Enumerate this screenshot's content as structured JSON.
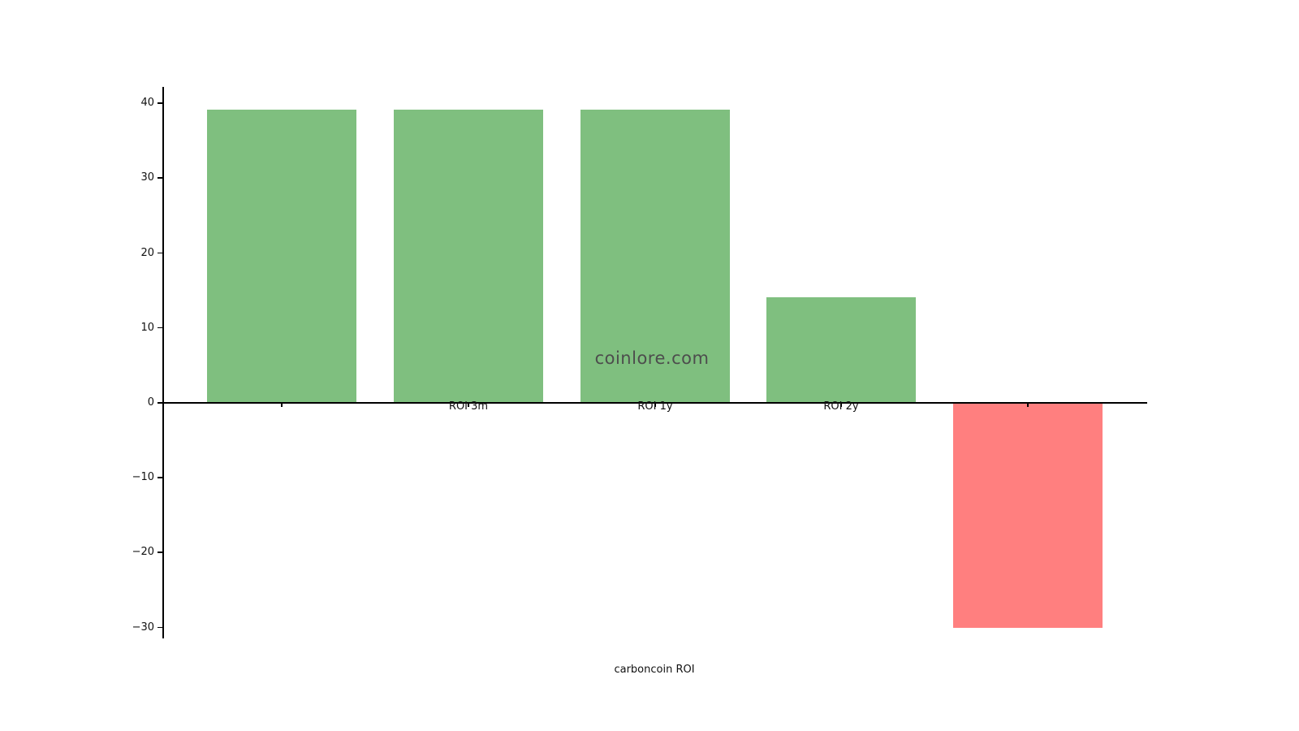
{
  "watermark": {
    "text": "coinlore.com",
    "color": "#4d4d4d"
  },
  "chart_data": {
    "type": "bar",
    "title": "carboncoin ROI",
    "categories": [
      "",
      "ROI 3m",
      "ROI 1y",
      "ROI 2y",
      ""
    ],
    "values": [
      39,
      39,
      39,
      14,
      -30
    ],
    "yticks": [
      40,
      30,
      20,
      10,
      0,
      -10,
      -20,
      -30
    ],
    "ylim": [
      -31.5,
      42
    ],
    "xlabel": "",
    "ylabel": "",
    "grid": false,
    "legend": false,
    "colors": {
      "positive_bar": "#7fbf7f",
      "negative_bar": "#ff7f7f",
      "axis": "#000000",
      "tick_label": "#111111"
    }
  }
}
